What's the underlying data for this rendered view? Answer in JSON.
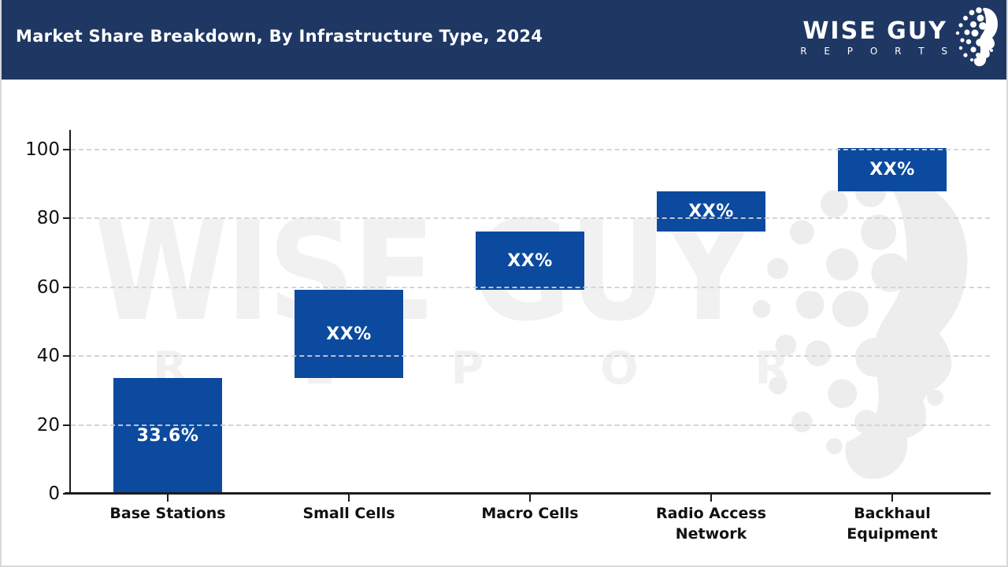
{
  "header": {
    "title": "Market Share Breakdown, By Infrastructure Type, 2024",
    "logo": {
      "wordmark": "WISE GUY",
      "subtext": "R E P O R T S"
    }
  },
  "watermark": {
    "wordmark": "WISE GUY",
    "subtext": "R E P O R T S"
  },
  "colors": {
    "header_bg": "#1f3763",
    "bar": "#0b4a9e",
    "bar_label_text": "#ffffff",
    "axis": "#1c1c1c",
    "gridline": "#d0d0d0",
    "watermark": "#f1f1f1",
    "frame_border": "#d9d9d9"
  },
  "chart_data": {
    "type": "bar",
    "subtype": "waterfall",
    "title": "Market Share Breakdown, By Infrastructure Type, 2024",
    "categories": [
      "Base Stations",
      "Small Cells",
      "Macro Cells",
      "Radio Access Network",
      "Backhaul Equipment"
    ],
    "segments": [
      {
        "category": "Base Stations",
        "tick_lines": [
          "Base Stations"
        ],
        "start": 0,
        "end": 33.6,
        "size": 33.6,
        "label": "33.6%"
      },
      {
        "category": "Small Cells",
        "tick_lines": [
          "Small Cells"
        ],
        "start": 33.6,
        "end": 59.2,
        "size": 25.6,
        "label": "XX%"
      },
      {
        "category": "Macro Cells",
        "tick_lines": [
          "Macro Cells"
        ],
        "start": 59.2,
        "end": 76.2,
        "size": 17.0,
        "label": "XX%"
      },
      {
        "category": "Radio Access Network",
        "tick_lines": [
          "Radio Access",
          "Network"
        ],
        "start": 76.2,
        "end": 87.9,
        "size": 11.7,
        "label": "XX%"
      },
      {
        "category": "Backhaul Equipment",
        "tick_lines": [
          "Backhaul Equipment"
        ],
        "start": 87.9,
        "end": 100.5,
        "size": 12.6,
        "label": "XX%"
      }
    ],
    "yticks": [
      0,
      20,
      40,
      60,
      80,
      100
    ],
    "ylim": [
      0,
      105.7
    ],
    "xlabel": "",
    "ylabel": "",
    "grid": "horizontal-dashed-drawn-over-bars",
    "legend": "none"
  }
}
